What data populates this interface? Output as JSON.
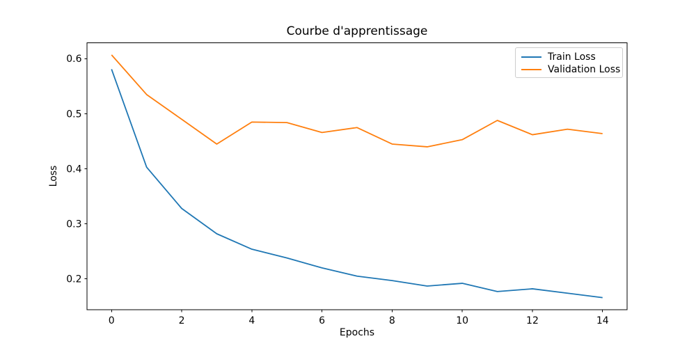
{
  "chart_data": {
    "type": "line",
    "title": "Courbe d'apprentissage",
    "xlabel": "Epochs",
    "ylabel": "Loss",
    "x": [
      0,
      1,
      2,
      3,
      4,
      5,
      6,
      7,
      8,
      9,
      10,
      11,
      12,
      13,
      14
    ],
    "series": [
      {
        "name": "Train Loss",
        "color": "#1f77b4",
        "values": [
          0.581,
          0.403,
          0.328,
          0.282,
          0.254,
          0.238,
          0.22,
          0.205,
          0.197,
          0.187,
          0.192,
          0.177,
          0.182,
          0.174,
          0.166
        ]
      },
      {
        "name": "Validation Loss",
        "color": "#ff7f0e",
        "values": [
          0.607,
          0.535,
          0.49,
          0.445,
          0.485,
          0.484,
          0.466,
          0.475,
          0.445,
          0.44,
          0.453,
          0.488,
          0.462,
          0.472,
          0.464
        ]
      }
    ],
    "xlim": [
      -0.7,
      14.7
    ],
    "ylim": [
      0.144,
      0.629
    ],
    "xticks": {
      "values": [
        0,
        2,
        4,
        6,
        8,
        10,
        12,
        14
      ],
      "labels": [
        "0",
        "2",
        "4",
        "6",
        "8",
        "10",
        "12",
        "14"
      ]
    },
    "yticks": {
      "values": [
        0.2,
        0.3,
        0.4,
        0.5,
        0.6
      ],
      "labels": [
        "0.2",
        "0.3",
        "0.4",
        "0.5",
        "0.6"
      ]
    },
    "grid": false,
    "legend_position": "upper right",
    "spine_color": "#000000"
  }
}
